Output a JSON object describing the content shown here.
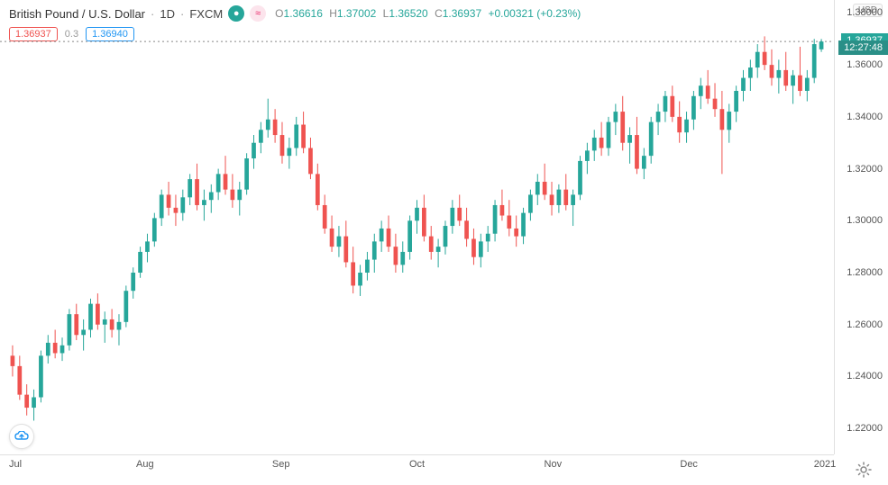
{
  "header": {
    "title": "British Pound / U.S. Dollar",
    "interval": "1D",
    "exchange": "FXCM",
    "ohlc": {
      "O": "1.36616",
      "H": "1.37002",
      "L": "1.36520",
      "C": "1.36937",
      "change": "+0.00321",
      "change_pct": "(+0.23%)"
    }
  },
  "row2": {
    "price_red": "1.36937",
    "spread": "0.3",
    "price_blue": "1.36940"
  },
  "axis_y": {
    "unit": "USD",
    "ticks": [
      1.38,
      1.36,
      1.34,
      1.32,
      1.3,
      1.28,
      1.26,
      1.24,
      1.22
    ],
    "ymin": 1.21,
    "ymax": 1.385
  },
  "price_tag": {
    "value": "1.36937",
    "time": "12:27:48"
  },
  "axis_x": {
    "labels": [
      "Jul",
      "Aug",
      "Sep",
      "Oct",
      "Nov",
      "Dec",
      "2021"
    ]
  },
  "chart": {
    "type": "candlestick",
    "colors": {
      "up": "#26a69a",
      "down": "#ef5350",
      "wick": "#555555"
    },
    "candles": [
      {
        "o": 1.248,
        "h": 1.252,
        "l": 1.24,
        "c": 1.244
      },
      {
        "o": 1.244,
        "h": 1.248,
        "l": 1.231,
        "c": 1.233
      },
      {
        "o": 1.233,
        "h": 1.237,
        "l": 1.225,
        "c": 1.228
      },
      {
        "o": 1.228,
        "h": 1.235,
        "l": 1.223,
        "c": 1.232
      },
      {
        "o": 1.232,
        "h": 1.25,
        "l": 1.23,
        "c": 1.248
      },
      {
        "o": 1.248,
        "h": 1.256,
        "l": 1.245,
        "c": 1.253
      },
      {
        "o": 1.253,
        "h": 1.258,
        "l": 1.247,
        "c": 1.249
      },
      {
        "o": 1.249,
        "h": 1.255,
        "l": 1.246,
        "c": 1.252
      },
      {
        "o": 1.252,
        "h": 1.266,
        "l": 1.25,
        "c": 1.264
      },
      {
        "o": 1.264,
        "h": 1.268,
        "l": 1.254,
        "c": 1.256
      },
      {
        "o": 1.256,
        "h": 1.262,
        "l": 1.25,
        "c": 1.258
      },
      {
        "o": 1.258,
        "h": 1.27,
        "l": 1.255,
        "c": 1.268
      },
      {
        "o": 1.268,
        "h": 1.272,
        "l": 1.258,
        "c": 1.26
      },
      {
        "o": 1.26,
        "h": 1.265,
        "l": 1.253,
        "c": 1.262
      },
      {
        "o": 1.262,
        "h": 1.266,
        "l": 1.255,
        "c": 1.258
      },
      {
        "o": 1.258,
        "h": 1.264,
        "l": 1.252,
        "c": 1.261
      },
      {
        "o": 1.261,
        "h": 1.275,
        "l": 1.259,
        "c": 1.273
      },
      {
        "o": 1.273,
        "h": 1.282,
        "l": 1.27,
        "c": 1.28
      },
      {
        "o": 1.28,
        "h": 1.29,
        "l": 1.278,
        "c": 1.288
      },
      {
        "o": 1.288,
        "h": 1.295,
        "l": 1.284,
        "c": 1.292
      },
      {
        "o": 1.292,
        "h": 1.303,
        "l": 1.29,
        "c": 1.301
      },
      {
        "o": 1.301,
        "h": 1.312,
        "l": 1.298,
        "c": 1.31
      },
      {
        "o": 1.31,
        "h": 1.315,
        "l": 1.302,
        "c": 1.305
      },
      {
        "o": 1.305,
        "h": 1.31,
        "l": 1.298,
        "c": 1.303
      },
      {
        "o": 1.303,
        "h": 1.312,
        "l": 1.3,
        "c": 1.309
      },
      {
        "o": 1.309,
        "h": 1.318,
        "l": 1.306,
        "c": 1.316
      },
      {
        "o": 1.316,
        "h": 1.322,
        "l": 1.304,
        "c": 1.306
      },
      {
        "o": 1.306,
        "h": 1.312,
        "l": 1.3,
        "c": 1.308
      },
      {
        "o": 1.308,
        "h": 1.314,
        "l": 1.303,
        "c": 1.311
      },
      {
        "o": 1.311,
        "h": 1.32,
        "l": 1.308,
        "c": 1.318
      },
      {
        "o": 1.318,
        "h": 1.325,
        "l": 1.31,
        "c": 1.312
      },
      {
        "o": 1.312,
        "h": 1.318,
        "l": 1.305,
        "c": 1.308
      },
      {
        "o": 1.308,
        "h": 1.315,
        "l": 1.302,
        "c": 1.312
      },
      {
        "o": 1.312,
        "h": 1.326,
        "l": 1.31,
        "c": 1.324
      },
      {
        "o": 1.324,
        "h": 1.333,
        "l": 1.32,
        "c": 1.33
      },
      {
        "o": 1.33,
        "h": 1.338,
        "l": 1.326,
        "c": 1.335
      },
      {
        "o": 1.335,
        "h": 1.347,
        "l": 1.332,
        "c": 1.339
      },
      {
        "o": 1.339,
        "h": 1.343,
        "l": 1.33,
        "c": 1.333
      },
      {
        "o": 1.333,
        "h": 1.338,
        "l": 1.322,
        "c": 1.325
      },
      {
        "o": 1.325,
        "h": 1.332,
        "l": 1.32,
        "c": 1.328
      },
      {
        "o": 1.328,
        "h": 1.34,
        "l": 1.325,
        "c": 1.337
      },
      {
        "o": 1.337,
        "h": 1.342,
        "l": 1.326,
        "c": 1.328
      },
      {
        "o": 1.328,
        "h": 1.332,
        "l": 1.316,
        "c": 1.318
      },
      {
        "o": 1.318,
        "h": 1.322,
        "l": 1.304,
        "c": 1.306
      },
      {
        "o": 1.306,
        "h": 1.31,
        "l": 1.295,
        "c": 1.297
      },
      {
        "o": 1.297,
        "h": 1.302,
        "l": 1.288,
        "c": 1.29
      },
      {
        "o": 1.29,
        "h": 1.298,
        "l": 1.286,
        "c": 1.294
      },
      {
        "o": 1.294,
        "h": 1.3,
        "l": 1.282,
        "c": 1.284
      },
      {
        "o": 1.284,
        "h": 1.29,
        "l": 1.272,
        "c": 1.275
      },
      {
        "o": 1.275,
        "h": 1.283,
        "l": 1.271,
        "c": 1.28
      },
      {
        "o": 1.28,
        "h": 1.288,
        "l": 1.277,
        "c": 1.285
      },
      {
        "o": 1.285,
        "h": 1.295,
        "l": 1.28,
        "c": 1.292
      },
      {
        "o": 1.292,
        "h": 1.3,
        "l": 1.288,
        "c": 1.297
      },
      {
        "o": 1.297,
        "h": 1.302,
        "l": 1.288,
        "c": 1.29
      },
      {
        "o": 1.29,
        "h": 1.295,
        "l": 1.28,
        "c": 1.283
      },
      {
        "o": 1.283,
        "h": 1.292,
        "l": 1.28,
        "c": 1.288
      },
      {
        "o": 1.288,
        "h": 1.302,
        "l": 1.285,
        "c": 1.3
      },
      {
        "o": 1.3,
        "h": 1.308,
        "l": 1.295,
        "c": 1.305
      },
      {
        "o": 1.305,
        "h": 1.31,
        "l": 1.292,
        "c": 1.294
      },
      {
        "o": 1.294,
        "h": 1.298,
        "l": 1.285,
        "c": 1.288
      },
      {
        "o": 1.288,
        "h": 1.293,
        "l": 1.282,
        "c": 1.29
      },
      {
        "o": 1.29,
        "h": 1.3,
        "l": 1.287,
        "c": 1.298
      },
      {
        "o": 1.298,
        "h": 1.308,
        "l": 1.295,
        "c": 1.305
      },
      {
        "o": 1.305,
        "h": 1.31,
        "l": 1.298,
        "c": 1.3
      },
      {
        "o": 1.3,
        "h": 1.305,
        "l": 1.29,
        "c": 1.293
      },
      {
        "o": 1.293,
        "h": 1.297,
        "l": 1.283,
        "c": 1.286
      },
      {
        "o": 1.286,
        "h": 1.295,
        "l": 1.282,
        "c": 1.292
      },
      {
        "o": 1.292,
        "h": 1.298,
        "l": 1.288,
        "c": 1.295
      },
      {
        "o": 1.295,
        "h": 1.308,
        "l": 1.292,
        "c": 1.306
      },
      {
        "o": 1.306,
        "h": 1.312,
        "l": 1.3,
        "c": 1.302
      },
      {
        "o": 1.302,
        "h": 1.308,
        "l": 1.294,
        "c": 1.297
      },
      {
        "o": 1.297,
        "h": 1.302,
        "l": 1.29,
        "c": 1.294
      },
      {
        "o": 1.294,
        "h": 1.305,
        "l": 1.291,
        "c": 1.303
      },
      {
        "o": 1.303,
        "h": 1.312,
        "l": 1.3,
        "c": 1.31
      },
      {
        "o": 1.31,
        "h": 1.318,
        "l": 1.306,
        "c": 1.315
      },
      {
        "o": 1.315,
        "h": 1.322,
        "l": 1.308,
        "c": 1.31
      },
      {
        "o": 1.31,
        "h": 1.315,
        "l": 1.302,
        "c": 1.306
      },
      {
        "o": 1.306,
        "h": 1.314,
        "l": 1.303,
        "c": 1.312
      },
      {
        "o": 1.312,
        "h": 1.318,
        "l": 1.304,
        "c": 1.306
      },
      {
        "o": 1.306,
        "h": 1.312,
        "l": 1.298,
        "c": 1.31
      },
      {
        "o": 1.31,
        "h": 1.325,
        "l": 1.308,
        "c": 1.323
      },
      {
        "o": 1.323,
        "h": 1.33,
        "l": 1.318,
        "c": 1.327
      },
      {
        "o": 1.327,
        "h": 1.335,
        "l": 1.323,
        "c": 1.332
      },
      {
        "o": 1.332,
        "h": 1.338,
        "l": 1.325,
        "c": 1.328
      },
      {
        "o": 1.328,
        "h": 1.34,
        "l": 1.325,
        "c": 1.338
      },
      {
        "o": 1.338,
        "h": 1.345,
        "l": 1.333,
        "c": 1.342
      },
      {
        "o": 1.342,
        "h": 1.348,
        "l": 1.327,
        "c": 1.33
      },
      {
        "o": 1.33,
        "h": 1.336,
        "l": 1.322,
        "c": 1.333
      },
      {
        "o": 1.333,
        "h": 1.34,
        "l": 1.318,
        "c": 1.32
      },
      {
        "o": 1.32,
        "h": 1.328,
        "l": 1.316,
        "c": 1.325
      },
      {
        "o": 1.325,
        "h": 1.34,
        "l": 1.322,
        "c": 1.338
      },
      {
        "o": 1.338,
        "h": 1.345,
        "l": 1.333,
        "c": 1.342
      },
      {
        "o": 1.342,
        "h": 1.35,
        "l": 1.338,
        "c": 1.348
      },
      {
        "o": 1.348,
        "h": 1.352,
        "l": 1.338,
        "c": 1.34
      },
      {
        "o": 1.34,
        "h": 1.346,
        "l": 1.33,
        "c": 1.334
      },
      {
        "o": 1.334,
        "h": 1.342,
        "l": 1.33,
        "c": 1.339
      },
      {
        "o": 1.339,
        "h": 1.35,
        "l": 1.335,
        "c": 1.348
      },
      {
        "o": 1.348,
        "h": 1.355,
        "l": 1.343,
        "c": 1.352
      },
      {
        "o": 1.352,
        "h": 1.358,
        "l": 1.345,
        "c": 1.347
      },
      {
        "o": 1.347,
        "h": 1.353,
        "l": 1.34,
        "c": 1.343
      },
      {
        "o": 1.343,
        "h": 1.35,
        "l": 1.318,
        "c": 1.335
      },
      {
        "o": 1.335,
        "h": 1.345,
        "l": 1.33,
        "c": 1.342
      },
      {
        "o": 1.342,
        "h": 1.352,
        "l": 1.338,
        "c": 1.35
      },
      {
        "o": 1.35,
        "h": 1.358,
        "l": 1.346,
        "c": 1.355
      },
      {
        "o": 1.355,
        "h": 1.362,
        "l": 1.35,
        "c": 1.359
      },
      {
        "o": 1.359,
        "h": 1.368,
        "l": 1.355,
        "c": 1.365
      },
      {
        "o": 1.365,
        "h": 1.371,
        "l": 1.358,
        "c": 1.36
      },
      {
        "o": 1.36,
        "h": 1.366,
        "l": 1.352,
        "c": 1.355
      },
      {
        "o": 1.355,
        "h": 1.362,
        "l": 1.349,
        "c": 1.358
      },
      {
        "o": 1.358,
        "h": 1.365,
        "l": 1.35,
        "c": 1.352
      },
      {
        "o": 1.352,
        "h": 1.358,
        "l": 1.345,
        "c": 1.356
      },
      {
        "o": 1.356,
        "h": 1.367,
        "l": 1.348,
        "c": 1.35
      },
      {
        "o": 1.35,
        "h": 1.358,
        "l": 1.346,
        "c": 1.355
      },
      {
        "o": 1.355,
        "h": 1.37,
        "l": 1.353,
        "c": 1.368
      },
      {
        "o": 1.366,
        "h": 1.37,
        "l": 1.365,
        "c": 1.369
      }
    ]
  }
}
